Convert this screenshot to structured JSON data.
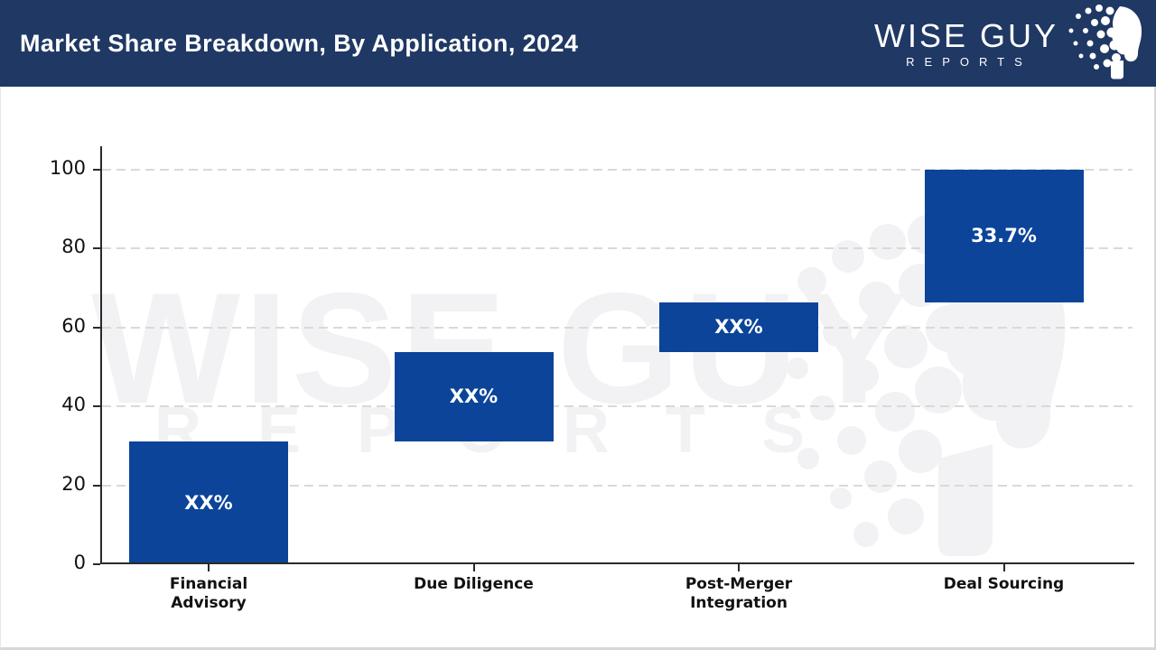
{
  "header": {
    "title": "Market Share Breakdown, By Application, 2024",
    "bg_color": "#1f3864",
    "logo": {
      "line1": "WISE GUY",
      "line2": "REPORTS"
    }
  },
  "watermark": {
    "line1": "WISE GUY",
    "line2": "REPORTS"
  },
  "chart_data": {
    "type": "bar",
    "subtype": "stacked-range-column",
    "title": "Market Share Breakdown, By Application, 2024",
    "xlabel": "",
    "ylabel": "",
    "ylim": [
      0,
      100
    ],
    "yticks": [
      0,
      20,
      40,
      60,
      80,
      100
    ],
    "grid": "horizontal-dashed",
    "legend": "none",
    "bar_color": "#0b4499",
    "label_color": "#ffffff",
    "categories": [
      "Financial Advisory",
      "Due Diligence",
      "Post-Merger Integration",
      "Deal Sourcing"
    ],
    "series": [
      {
        "name": "Market Share",
        "ranges": [
          [
            0,
            31.2
          ],
          [
            31.2,
            53.8
          ],
          [
            53.8,
            66.3
          ],
          [
            66.3,
            100
          ]
        ]
      }
    ],
    "segment_sizes": [
      31.2,
      22.6,
      12.5,
      33.7
    ],
    "bar_labels": [
      "XX%",
      "XX%",
      "XX%",
      "33.7%"
    ]
  }
}
